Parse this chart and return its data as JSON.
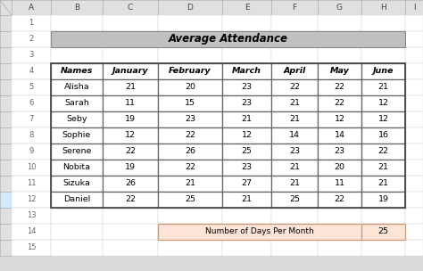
{
  "title": "Average Attendance",
  "headers": [
    "Names",
    "January",
    "February",
    "March",
    "April",
    "May",
    "June"
  ],
  "rows": [
    [
      "Alisha",
      21,
      20,
      23,
      22,
      22,
      21
    ],
    [
      "Sarah",
      11,
      15,
      23,
      21,
      22,
      12
    ],
    [
      "Seby",
      19,
      23,
      21,
      21,
      12,
      12
    ],
    [
      "Sophie",
      12,
      22,
      12,
      14,
      14,
      16
    ],
    [
      "Serene",
      22,
      26,
      25,
      23,
      23,
      22
    ],
    [
      "Nobita",
      19,
      22,
      23,
      21,
      20,
      21
    ],
    [
      "Sizuka",
      26,
      21,
      27,
      21,
      11,
      21
    ],
    [
      "Daniel",
      22,
      25,
      21,
      25,
      22,
      19
    ]
  ],
  "bottom_label": "Number of Days Per Month",
  "bottom_value": "25",
  "title_bg": "#c0c0c0",
  "bottom_label_bg": "#fce4d6",
  "fig_bg": "#d9d9d9"
}
